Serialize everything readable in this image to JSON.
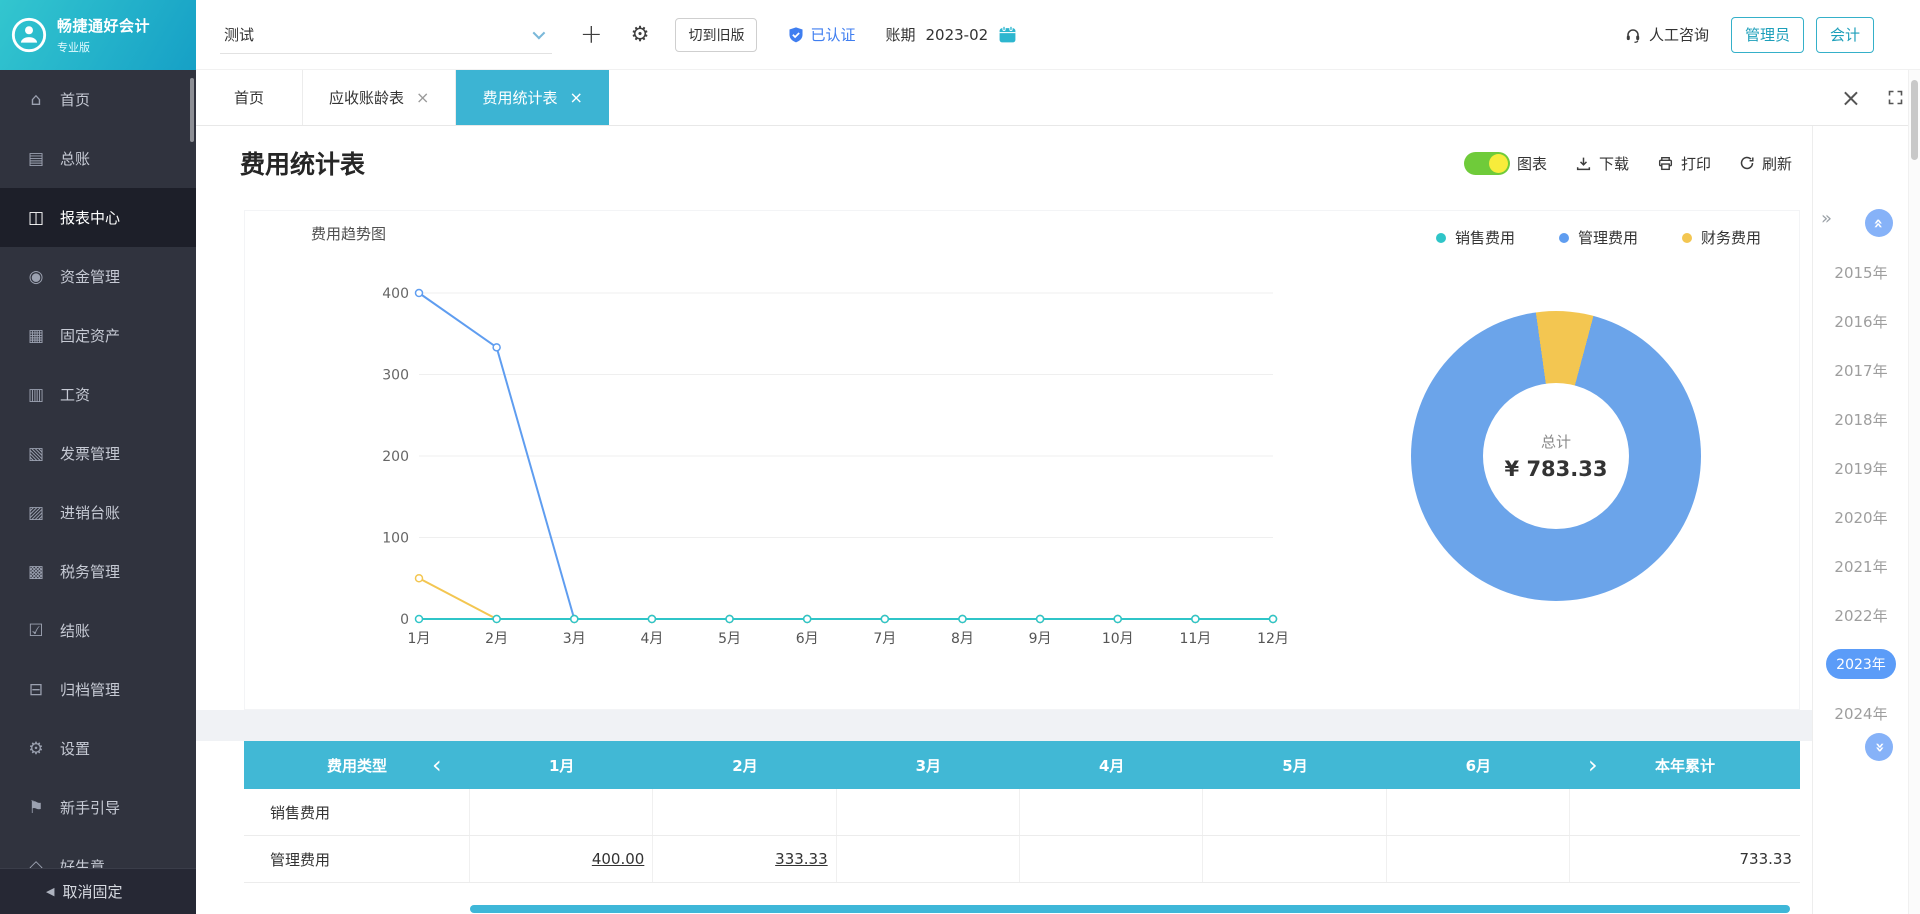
{
  "brand": {
    "name": "畅捷通好会计",
    "edition": "专业版"
  },
  "topbar": {
    "account_set": "测试",
    "switch_old_label": "切到旧版",
    "certified_label": "已认证",
    "period_label": "账期",
    "period_value": "2023-02",
    "support_label": "人工咨询",
    "admin_label": "管理员",
    "accountant_label": "会计"
  },
  "sidebar": {
    "items": [
      {
        "id": "home",
        "label": "首页",
        "icon": "⌂"
      },
      {
        "id": "general-ledger",
        "label": "总账",
        "icon": "▤"
      },
      {
        "id": "report-center",
        "label": "报表中心",
        "icon": "◫",
        "active": true
      },
      {
        "id": "funds",
        "label": "资金管理",
        "icon": "◉"
      },
      {
        "id": "fixed-assets",
        "label": "固定资产",
        "icon": "▦"
      },
      {
        "id": "salary",
        "label": "工资",
        "icon": "▥"
      },
      {
        "id": "invoice",
        "label": "发票管理",
        "icon": "▧"
      },
      {
        "id": "inventory-ledger",
        "label": "进销台账",
        "icon": "▨"
      },
      {
        "id": "tax",
        "label": "税务管理",
        "icon": "▩"
      },
      {
        "id": "closing",
        "label": "结账",
        "icon": "☑"
      },
      {
        "id": "archive",
        "label": "归档管理",
        "icon": "⊟"
      },
      {
        "id": "settings",
        "label": "设置",
        "icon": "⚙"
      },
      {
        "id": "guide",
        "label": "新手引导",
        "icon": "⚑"
      },
      {
        "id": "extra",
        "label": "好生意",
        "icon": "◇"
      }
    ],
    "unpin_label": "取消固定"
  },
  "tabs": [
    {
      "id": "home",
      "label": "首页"
    },
    {
      "id": "receivables-aging",
      "label": "应收账龄表",
      "closable": true
    },
    {
      "id": "expense-stats",
      "label": "费用统计表",
      "closable": true,
      "active": true
    }
  ],
  "page": {
    "title": "费用统计表",
    "chart_toggle_label": "图表",
    "download_label": "下载",
    "print_label": "打印",
    "refresh_label": "刷新"
  },
  "chart_data": [
    {
      "type": "line",
      "title": "费用趋势图",
      "categories": [
        "1月",
        "2月",
        "3月",
        "4月",
        "5月",
        "6月",
        "7月",
        "8月",
        "9月",
        "10月",
        "11月",
        "12月"
      ],
      "series": [
        {
          "id": "sales-expense",
          "name": "销售费用",
          "color": "#2fc5c8",
          "values": [
            0,
            0,
            0,
            0,
            0,
            0,
            0,
            0,
            0,
            0,
            0,
            0
          ]
        },
        {
          "id": "admin-expense",
          "name": "管理费用",
          "color": "#5f9df0",
          "values": [
            400,
            333.33,
            0,
            0,
            0,
            0,
            0,
            0,
            0,
            0,
            0,
            0
          ]
        },
        {
          "id": "finance-expense",
          "name": "财务费用",
          "color": "#f3c651",
          "values": [
            50,
            0,
            0,
            0,
            0,
            0,
            0,
            0,
            0,
            0,
            0,
            0
          ]
        }
      ],
      "xlabel": "",
      "ylabel": "",
      "ylim": [
        0,
        400
      ],
      "yticks": [
        0,
        100,
        200,
        300,
        400
      ],
      "grid": true,
      "legend_position": "top-right"
    },
    {
      "type": "pie",
      "donut": true,
      "center_label": "总计",
      "center_value": "¥ 783.33",
      "total": 783.33,
      "start_angle": -8,
      "slices": [
        {
          "id": "finance-expense",
          "name": "财务费用",
          "value": 50,
          "color": "#f3c651"
        },
        {
          "id": "admin-expense",
          "name": "管理费用",
          "value": 733.33,
          "color": "#6ba4ea"
        },
        {
          "id": "sales-expense",
          "name": "销售费用",
          "value": 0,
          "color": "#2fc5c8"
        }
      ]
    }
  ],
  "table": {
    "columns": [
      "费用类型",
      "1月",
      "2月",
      "3月",
      "4月",
      "5月",
      "6月",
      "本年累计"
    ],
    "prev_arrow": "‹",
    "next_arrow": "›",
    "rows": [
      {
        "id": "sales-expense",
        "label": "销售费用",
        "cells": [
          "",
          "",
          "",
          "",
          "",
          "",
          ""
        ]
      },
      {
        "id": "admin-expense",
        "label": "管理费用",
        "cells": [
          "400.00",
          "333.33",
          "",
          "",
          "",
          "",
          "733.33"
        ]
      }
    ]
  },
  "year_panel": {
    "years": [
      "2015年",
      "2016年",
      "2017年",
      "2018年",
      "2019年",
      "2020年",
      "2021年",
      "2022年",
      "2023年",
      "2024年"
    ],
    "active_index": 8
  },
  "colors": {
    "brand_teal": "#3cb4d3",
    "sidebar_bg": "#30333e",
    "active_year_blue": "#5b9cf8",
    "certified_blue": "#3f7ef0",
    "table_header": "#41b8d5"
  }
}
